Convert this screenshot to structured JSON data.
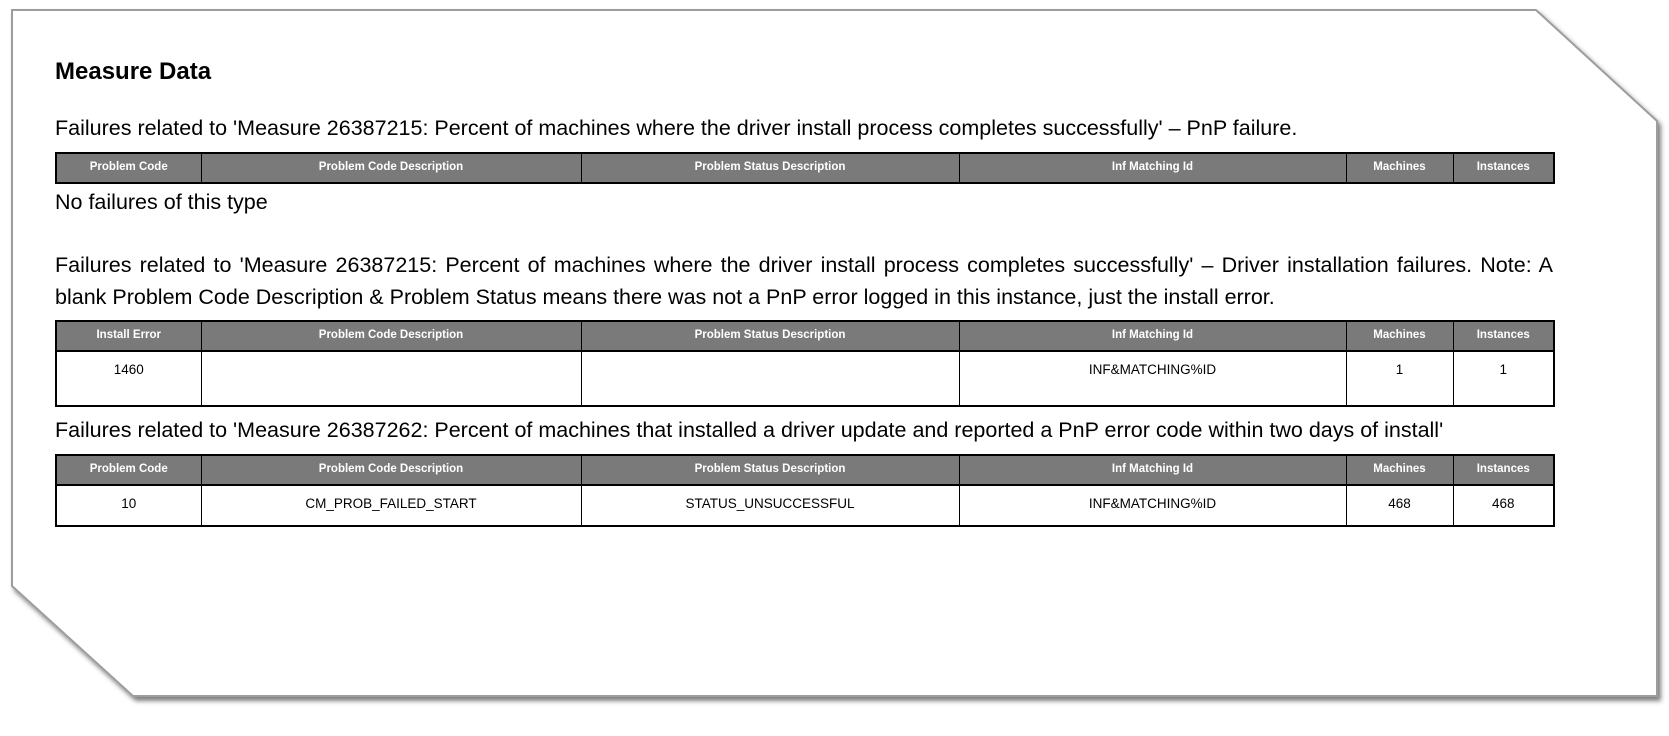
{
  "sheet": {
    "title": "Measure Data",
    "sections": [
      {
        "paragraph": "Failures related to 'Measure 26387215: Percent of machines where the driver install process completes successfully' – PnP failure.",
        "note": "No failures of this type",
        "table": {
          "headers": [
            "Problem Code",
            "Problem Code Description",
            "Problem Status Description",
            "Inf Matching Id",
            "Machines",
            "Instances"
          ],
          "rows": []
        }
      },
      {
        "paragraph": "Failures related to 'Measure 26387215: Percent of machines where the driver install process completes successfully' – Driver installation failures. Note: A blank Problem Code Description & Problem Status means there was not a PnP error logged in this instance, just the install error.",
        "table": {
          "headers": [
            "Install Error",
            "Problem Code Description",
            "Problem Status Description",
            "Inf Matching Id",
            "Machines",
            "Instances"
          ],
          "rows": [
            [
              "1460",
              "",
              "",
              "INF&MATCHING%ID",
              "1",
              "1"
            ]
          ]
        }
      },
      {
        "paragraph": "Failures related to 'Measure 26387262: Percent of machines that installed a driver update and reported a PnP error code within two days of install'",
        "table": {
          "headers": [
            "Problem Code",
            "Problem Code Description",
            "Problem Status Description",
            "Inf Matching Id",
            "Machines",
            "Instances"
          ],
          "rows": [
            [
              "10",
              "CM_PROB_FAILED_START",
              "STATUS_UNSUCCESSFUL",
              "INF&MATCHING%ID",
              "468",
              "468"
            ]
          ]
        }
      }
    ],
    "colors": {
      "table_header_bg": "#7a7a7a",
      "table_header_text": "#ffffff",
      "table_border": "#000000",
      "sheet_border": "#9d9d9d"
    }
  }
}
